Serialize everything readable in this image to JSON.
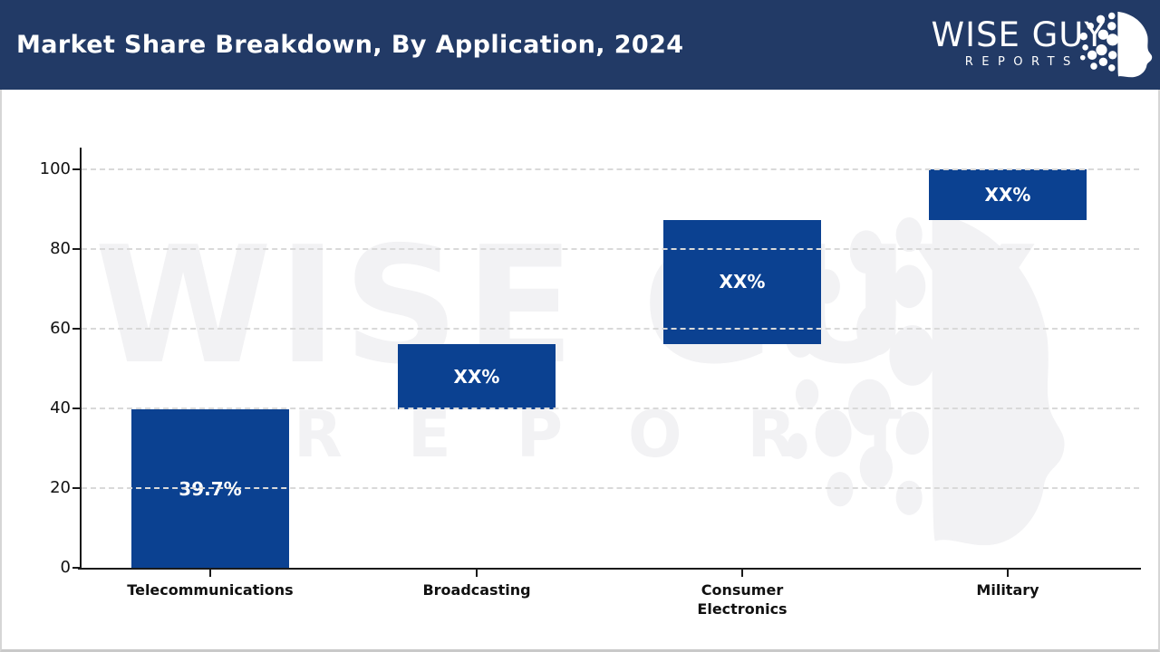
{
  "header": {
    "title": "Market Share Breakdown, By Application, 2024",
    "bg_color": "#223A66",
    "logo": {
      "line1": "WISE GUY",
      "line2": "REPORTS"
    }
  },
  "watermark": {
    "line1": "WISE GUY",
    "line2": "REPORTS",
    "color": "#F2F2F4"
  },
  "chart_data": {
    "type": "bar",
    "subtype": "floating-waterfall",
    "title": "Market Share Breakdown, By Application, 2024",
    "categories": [
      "Telecommunications",
      "Broadcasting",
      "Consumer Electronics",
      "Military"
    ],
    "category_display": [
      "Telecommunications",
      "Broadcasting",
      "Consumer\nElectronics",
      "Military"
    ],
    "segments": [
      {
        "category": "Telecommunications",
        "start": 0,
        "end": 39.7,
        "value": 39.7,
        "label": "39.7%"
      },
      {
        "category": "Broadcasting",
        "start": 39.7,
        "end": 56.2,
        "value": 16.5,
        "label": "XX%"
      },
      {
        "category": "Consumer Electronics",
        "start": 56.2,
        "end": 87.3,
        "value": 31.1,
        "label": "XX%"
      },
      {
        "category": "Military",
        "start": 87.3,
        "end": 100,
        "value": 12.7,
        "label": "XX%"
      }
    ],
    "xlabel": "",
    "ylabel": "",
    "yticks": [
      0,
      20,
      40,
      60,
      80,
      100
    ],
    "ylim": [
      0,
      105
    ],
    "grid": "horizontal-dashed",
    "legend": "none",
    "bar_color": "#0B4191",
    "label_color": "#FFFFFF"
  }
}
